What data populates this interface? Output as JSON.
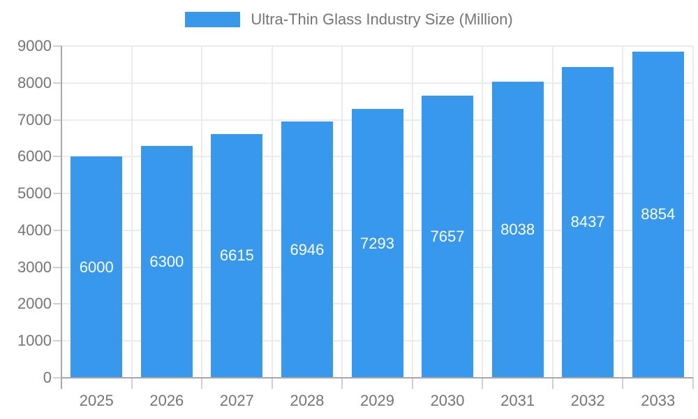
{
  "chart_data": {
    "type": "bar",
    "series_name": "Ultra-Thin Glass Industry Size (Million)",
    "legend_position": "top-center",
    "categories": [
      "2025",
      "2026",
      "2027",
      "2028",
      "2029",
      "2030",
      "2031",
      "2032",
      "2033"
    ],
    "values": [
      6000,
      6300,
      6615,
      6946,
      7293,
      7657,
      8038,
      8437,
      8854
    ],
    "value_labels_position": "inside-center",
    "xlabel": "",
    "ylabel": "",
    "ylim": [
      0,
      9000
    ],
    "ytick_step": 1000,
    "ytick_labels": [
      "0",
      "1000",
      "2000",
      "3000",
      "4000",
      "5000",
      "6000",
      "7000",
      "8000",
      "9000"
    ],
    "grid": true,
    "colors": {
      "bar": "#3899EC",
      "value_label": "#FFFFFF",
      "axis_text": "#757575",
      "gridline": "#EBEBEB",
      "axis_line": "#A8A8A8",
      "tick": "#CFCFCF",
      "background": "#FFFFFF"
    }
  }
}
